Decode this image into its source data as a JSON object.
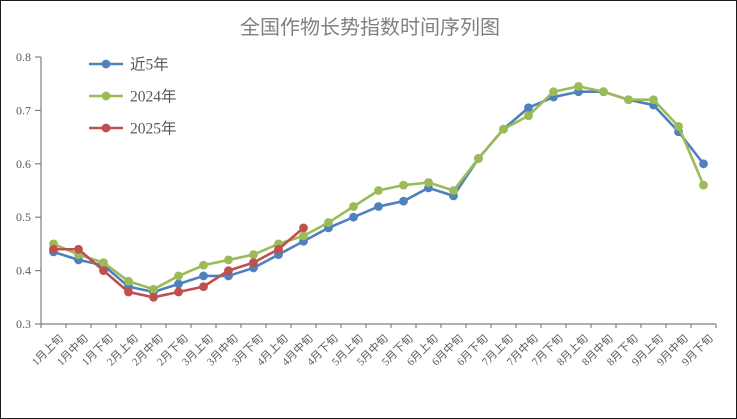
{
  "frame": {
    "background": "#ffffff",
    "border_color": "#1a1a1a"
  },
  "chart_data": {
    "type": "line",
    "title": "全国作物长势指数时间序列图",
    "title_color": "#808080",
    "axis_color": "#808080",
    "label_color": "#595959",
    "legend_text_color": "#595959",
    "grid": false,
    "legend_position": "top-left-inside",
    "xlabel": "",
    "ylabel": "",
    "ylim": [
      0.3,
      0.8
    ],
    "ytick_labels": [
      "0.3",
      "0.4",
      "0.5",
      "0.6",
      "0.7",
      "0.8"
    ],
    "ytick_values": [
      0.3,
      0.4,
      0.5,
      0.6,
      0.7,
      0.8
    ],
    "categories": [
      "1月上旬",
      "1月中旬",
      "1月下旬",
      "2月上旬",
      "2月中旬",
      "2月下旬",
      "3月上旬",
      "3月中旬",
      "3月下旬",
      "4月上旬",
      "4月中旬",
      "4月下旬",
      "5月上旬",
      "5月中旬",
      "5月下旬",
      "6月上旬",
      "6月中旬",
      "6月下旬",
      "7月上旬",
      "7月中旬",
      "7月下旬",
      "8月上旬",
      "8月中旬",
      "8月下旬",
      "9月上旬",
      "9月中旬",
      "9月下旬"
    ],
    "series": [
      {
        "name": "近5年",
        "color": "#4F81BD",
        "values": [
          0.435,
          0.42,
          0.41,
          0.37,
          0.36,
          0.375,
          0.39,
          0.39,
          0.405,
          0.43,
          0.455,
          0.48,
          0.5,
          0.52,
          0.53,
          0.555,
          0.54,
          0.61,
          0.665,
          0.705,
          0.725,
          0.735,
          0.735,
          0.72,
          0.71,
          0.66,
          0.6
        ]
      },
      {
        "name": "2024年",
        "color": "#9BBB59",
        "values": [
          0.45,
          0.43,
          0.415,
          0.38,
          0.365,
          0.39,
          0.41,
          0.42,
          0.43,
          0.45,
          0.465,
          0.49,
          0.52,
          0.55,
          0.56,
          0.565,
          0.55,
          0.61,
          0.665,
          0.69,
          0.735,
          0.745,
          0.735,
          0.72,
          0.72,
          0.67,
          0.56
        ]
      },
      {
        "name": "2025年",
        "color": "#C0504D",
        "values": [
          0.44,
          0.44,
          0.4,
          0.36,
          0.35,
          0.36,
          0.37,
          0.4,
          0.415,
          0.44,
          0.48,
          null,
          null,
          null,
          null,
          null,
          null,
          null,
          null,
          null,
          null,
          null,
          null,
          null,
          null,
          null,
          null
        ]
      }
    ]
  }
}
